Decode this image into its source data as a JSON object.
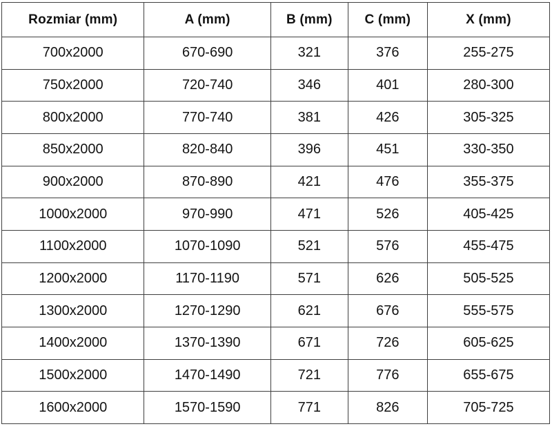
{
  "table": {
    "name": "size-specification-table",
    "columns": [
      "Rozmiar (mm)",
      "A (mm)",
      "B (mm)",
      "C (mm)",
      "X (mm)"
    ],
    "rows": [
      [
        "700x2000",
        "670-690",
        "321",
        "376",
        "255-275"
      ],
      [
        "750x2000",
        "720-740",
        "346",
        "401",
        "280-300"
      ],
      [
        "800x2000",
        "770-740",
        "381",
        "426",
        "305-325"
      ],
      [
        "850x2000",
        "820-840",
        "396",
        "451",
        "330-350"
      ],
      [
        "900x2000",
        "870-890",
        "421",
        "476",
        "355-375"
      ],
      [
        "1000x2000",
        "970-990",
        "471",
        "526",
        "405-425"
      ],
      [
        "1100x2000",
        "1070-1090",
        "521",
        "576",
        "455-475"
      ],
      [
        "1200x2000",
        "1170-1190",
        "571",
        "626",
        "505-525"
      ],
      [
        "1300x2000",
        "1270-1290",
        "621",
        "676",
        "555-575"
      ],
      [
        "1400x2000",
        "1370-1390",
        "671",
        "726",
        "605-625"
      ],
      [
        "1500x2000",
        "1470-1490",
        "721",
        "776",
        "655-675"
      ],
      [
        "1600x2000",
        "1570-1590",
        "771",
        "826",
        "705-725"
      ]
    ]
  },
  "colors": {
    "border": "#3f3f3f",
    "text": "#131313",
    "background": "#ffffff"
  }
}
